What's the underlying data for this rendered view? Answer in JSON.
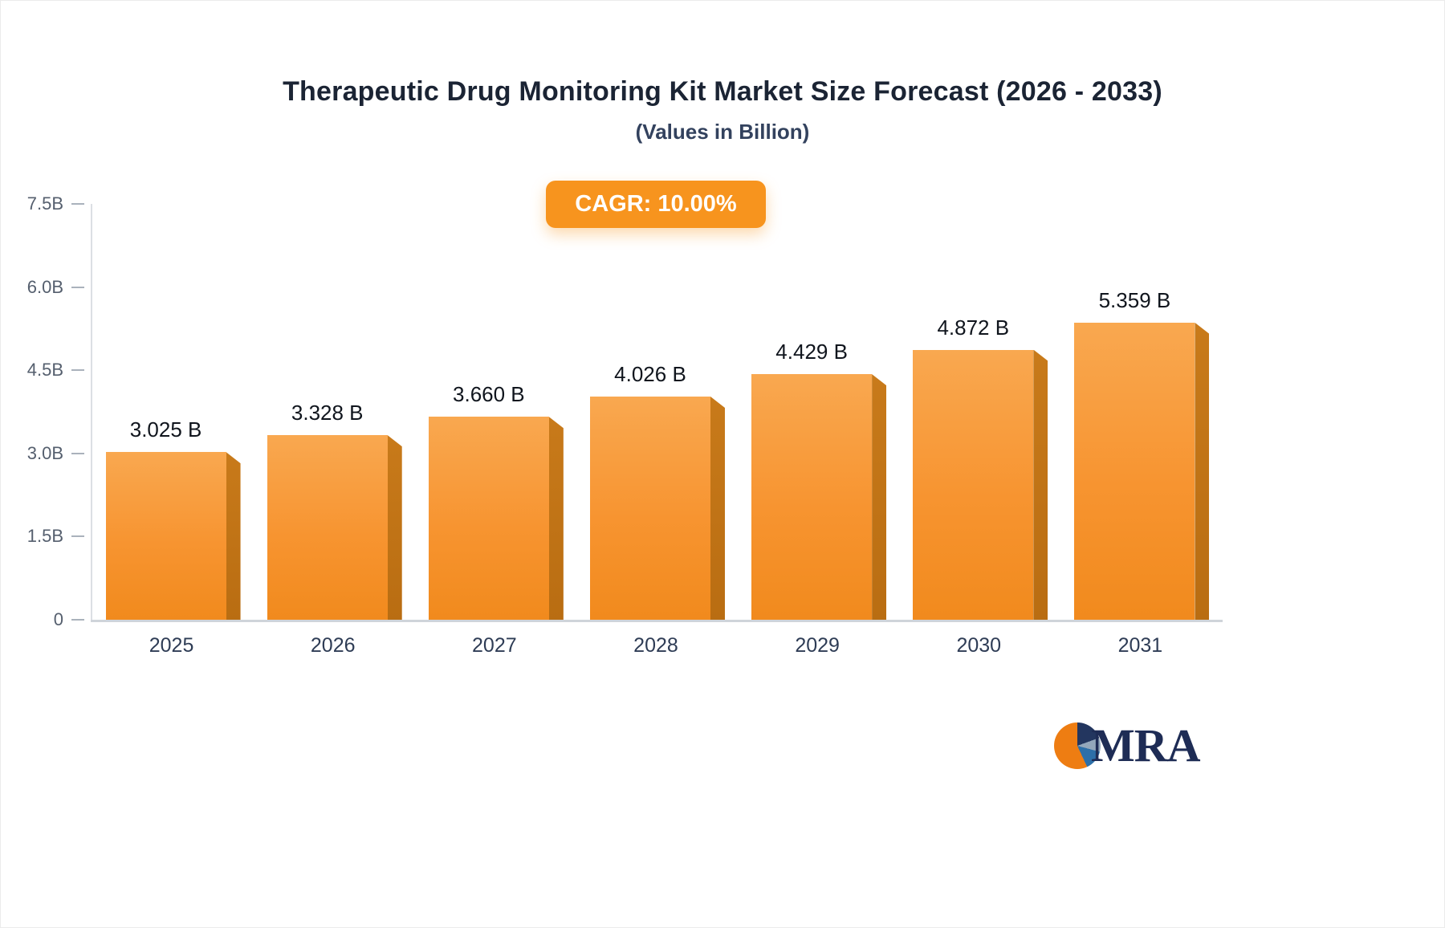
{
  "header": {
    "title": "Therapeutic Drug Monitoring Kit Market Size Forecast (2026 - 2033)",
    "subtitle": "(Values in Billion)"
  },
  "badge": {
    "label": "CAGR: 10.00%",
    "color": "#f7941e"
  },
  "chart_data": {
    "type": "bar",
    "title": "Therapeutic Drug Monitoring Kit Market Size Forecast (2026 - 2033)",
    "subtitle": "(Values in Billion)",
    "cagr": "10.00%",
    "categories": [
      "2025",
      "2026",
      "2027",
      "2028",
      "2029",
      "2030",
      "2031"
    ],
    "values": [
      3.025,
      3.328,
      3.66,
      4.026,
      4.429,
      4.872,
      5.359
    ],
    "value_labels": [
      "3.025 B",
      "3.328 B",
      "3.660 B",
      "4.026 B",
      "4.429 B",
      "4.872 B",
      "5.359 B"
    ],
    "unit": "Billion",
    "ylim": [
      0,
      7.5
    ],
    "y_ticks": [
      0,
      1.5,
      3.0,
      4.5,
      6.0,
      7.5
    ],
    "y_tick_labels": [
      "0",
      "1.5B",
      "3.0B",
      "4.5B",
      "6.0B",
      "7.5B"
    ],
    "grid": false,
    "legend": "none",
    "bar_color": "#f79430",
    "bar_side_color": "#b96d12"
  },
  "logo": {
    "text": "MRA"
  }
}
